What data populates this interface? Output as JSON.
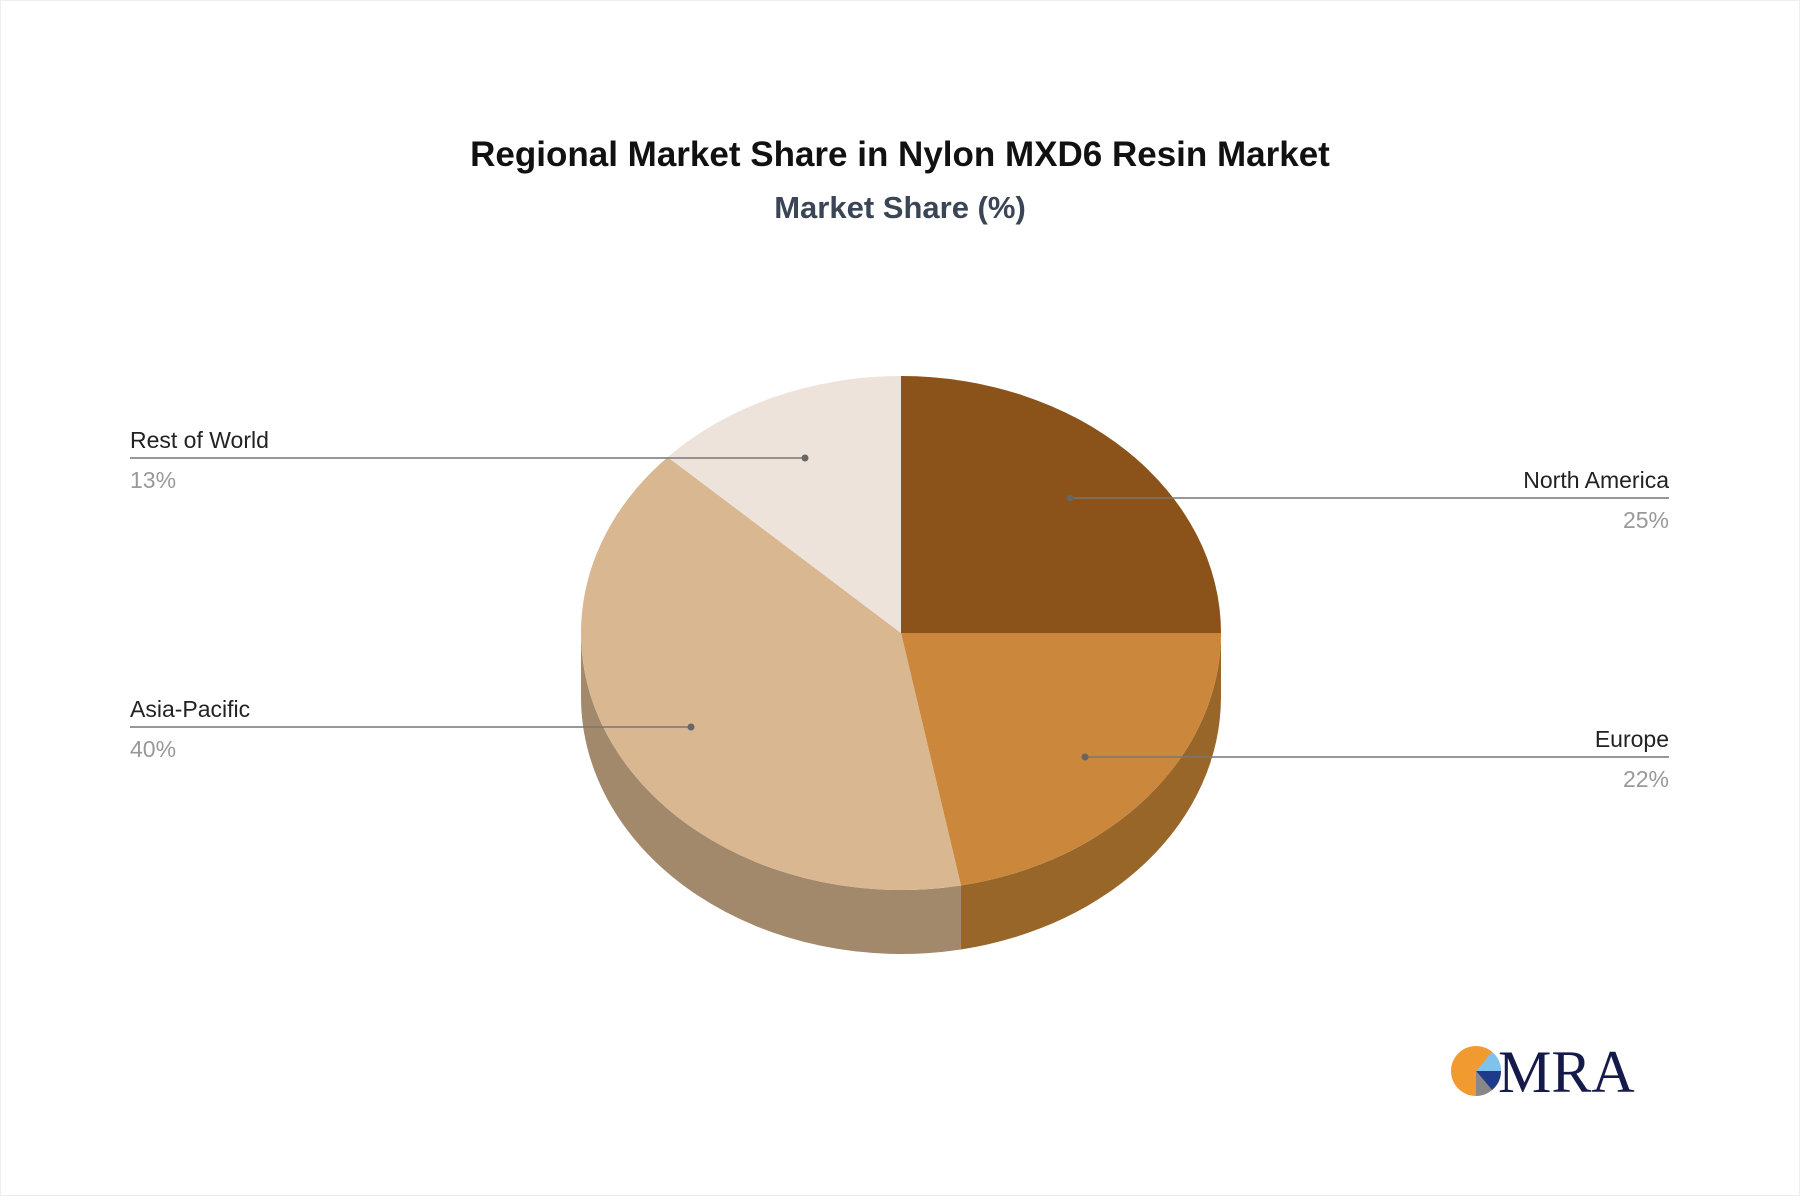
{
  "chart_data": {
    "type": "pie",
    "title": "Regional Market Share in Nylon MXD6 Resin Market",
    "subtitle": "Market Share (%)",
    "categories": [
      "North America",
      "Europe",
      "Asia-Pacific",
      "Rest of World"
    ],
    "values": [
      25,
      22,
      40,
      13
    ],
    "value_labels": [
      "25%",
      "22%",
      "40%",
      "13%"
    ],
    "colors": [
      "#8B5219",
      "#CB883C",
      "#D8B791",
      "#EDE3DA"
    ],
    "side_colors": [
      "#6E4114",
      "#996629",
      "#A3896C",
      "#BDB3AA"
    ],
    "style": "3d",
    "legend": "none"
  },
  "logo": {
    "text": "MRA"
  }
}
